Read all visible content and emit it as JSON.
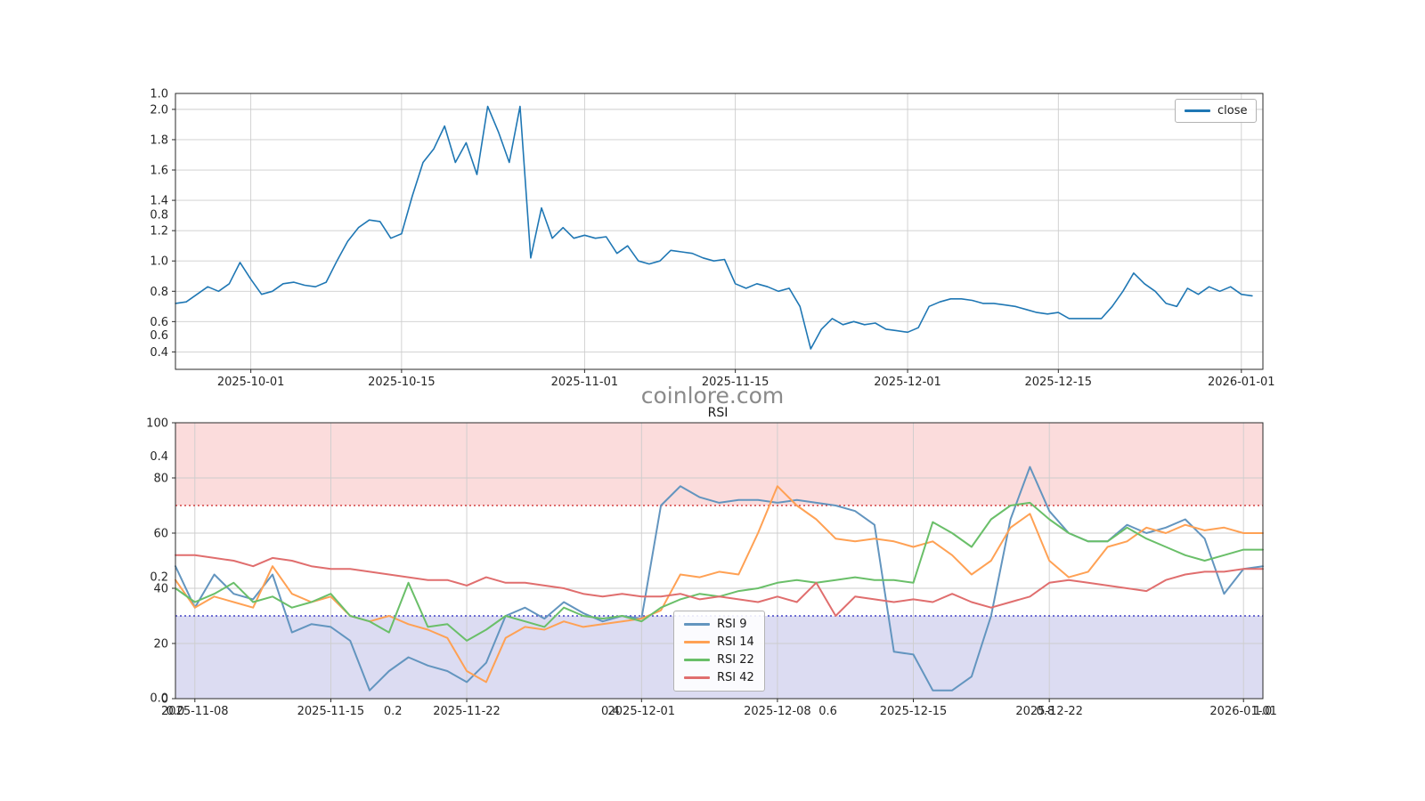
{
  "source_watermark": "coinlore.com",
  "hidden_axis": {
    "left_tick_labels": [
      "1.0",
      "0.8",
      "0.6",
      "0.4",
      "0.2",
      "0.0"
    ],
    "bottom_tick_labels": [
      "0.0",
      "0.2",
      "0.4",
      "0.6",
      "0.8",
      "1.0"
    ]
  },
  "chart_data": [
    {
      "type": "line",
      "title": "",
      "xlabel": "",
      "ylabel": "",
      "grid": true,
      "grid_color": "#cdcdcd",
      "legend_position": "upper right",
      "ylim": [
        0.285,
        2.105
      ],
      "xlim": [
        "2025-09-24",
        "2026-01-03"
      ],
      "yticks": [
        {
          "v": 0.4,
          "label": "0.4"
        },
        {
          "v": 0.6,
          "label": "0.6"
        },
        {
          "v": 0.8,
          "label": "0.8"
        },
        {
          "v": 1.0,
          "label": "1.0"
        },
        {
          "v": 1.2,
          "label": "1.2"
        },
        {
          "v": 1.4,
          "label": "1.4"
        },
        {
          "v": 1.6,
          "label": "1.6"
        },
        {
          "v": 1.8,
          "label": "1.8"
        },
        {
          "v": 2.0,
          "label": "2.0"
        }
      ],
      "xticks": [
        {
          "date": "2025-10-01",
          "label": "2025-10-01"
        },
        {
          "date": "2025-10-15",
          "label": "2025-10-15"
        },
        {
          "date": "2025-11-01",
          "label": "2025-11-01"
        },
        {
          "date": "2025-11-15",
          "label": "2025-11-15"
        },
        {
          "date": "2025-12-01",
          "label": "2025-12-01"
        },
        {
          "date": "2025-12-15",
          "label": "2025-12-15"
        },
        {
          "date": "2026-01-01",
          "label": "2026-01-01"
        }
      ],
      "series": [
        {
          "name": "close",
          "color": "#1f77b4",
          "x_start": "2025-09-24",
          "interval": "1d",
          "values": [
            0.72,
            0.73,
            0.78,
            0.83,
            0.8,
            0.85,
            0.99,
            0.88,
            0.78,
            0.8,
            0.85,
            0.86,
            0.84,
            0.83,
            0.86,
            1.0,
            1.13,
            1.22,
            1.27,
            1.26,
            1.15,
            1.18,
            1.43,
            1.65,
            1.74,
            1.89,
            1.65,
            1.78,
            1.57,
            2.02,
            1.85,
            1.65,
            2.02,
            1.02,
            1.35,
            1.15,
            1.22,
            1.15,
            1.17,
            1.15,
            1.16,
            1.05,
            1.1,
            1.0,
            0.98,
            1.0,
            1.07,
            1.06,
            1.05,
            1.02,
            1.0,
            1.01,
            0.85,
            0.82,
            0.85,
            0.83,
            0.8,
            0.82,
            0.7,
            0.42,
            0.55,
            0.62,
            0.58,
            0.6,
            0.58,
            0.59,
            0.55,
            0.54,
            0.53,
            0.56,
            0.7,
            0.73,
            0.75,
            0.75,
            0.74,
            0.72,
            0.72,
            0.71,
            0.7,
            0.68,
            0.66,
            0.65,
            0.66,
            0.62,
            0.62,
            0.62,
            0.62,
            0.7,
            0.8,
            0.92,
            0.85,
            0.8,
            0.72,
            0.7,
            0.82,
            0.78,
            0.83,
            0.8,
            0.83,
            0.78,
            0.77
          ]
        }
      ]
    },
    {
      "type": "line",
      "title": "RSI",
      "xlabel": "",
      "ylabel": "",
      "grid": true,
      "grid_color": "#cdcdcd",
      "legend_position": "lower center-left",
      "ylim": [
        0,
        100
      ],
      "xlim": [
        "2025-11-07",
        "2026-01-02"
      ],
      "overbought": {
        "level": 70,
        "line_color": "#cc2222",
        "fill": "#fbdcdc"
      },
      "oversold": {
        "level": 30,
        "line_color": "#2222bb",
        "fill": "#dcdcf2"
      },
      "yticks": [
        {
          "v": 0,
          "label": "0"
        },
        {
          "v": 20,
          "label": "20"
        },
        {
          "v": 40,
          "label": "40"
        },
        {
          "v": 60,
          "label": "60"
        },
        {
          "v": 80,
          "label": "80"
        },
        {
          "v": 100,
          "label": "100"
        }
      ],
      "xticks": [
        {
          "date": "2025-11-08",
          "label": "2025-11-08"
        },
        {
          "date": "2025-11-15",
          "label": "2025-11-15"
        },
        {
          "date": "2025-11-22",
          "label": "2025-11-22"
        },
        {
          "date": "2025-12-01",
          "label": "2025-12-01"
        },
        {
          "date": "2025-12-08",
          "label": "2025-12-08"
        },
        {
          "date": "2025-12-15",
          "label": "2025-12-15"
        },
        {
          "date": "2025-12-22",
          "label": "2025-12-22"
        },
        {
          "date": "2026-01-01",
          "label": "2026-01-01"
        }
      ],
      "series": [
        {
          "name": "RSI 9",
          "color": "#6395bf",
          "x_start": "2025-11-07",
          "interval": "1d",
          "values": [
            48,
            33,
            45,
            38,
            36,
            45,
            24,
            27,
            26,
            21,
            3,
            10,
            15,
            12,
            10,
            6,
            13,
            30,
            33,
            29,
            35,
            31,
            28,
            30,
            29,
            70,
            77,
            73,
            71,
            72,
            72,
            71,
            72,
            71,
            70,
            68,
            63,
            17,
            16,
            3,
            3,
            8,
            30,
            65,
            84,
            68,
            60,
            57,
            57,
            63,
            60,
            62,
            65,
            58,
            38,
            47,
            48
          ]
        },
        {
          "name": "RSI 14",
          "color": "#ffa154",
          "x_start": "2025-11-07",
          "interval": "1d",
          "values": [
            43,
            33,
            37,
            35,
            33,
            48,
            38,
            35,
            37,
            30,
            28,
            30,
            27,
            25,
            22,
            10,
            6,
            22,
            26,
            25,
            28,
            26,
            27,
            28,
            29,
            32,
            45,
            44,
            46,
            45,
            60,
            77,
            70,
            65,
            58,
            57,
            58,
            57,
            55,
            57,
            52,
            45,
            50,
            62,
            67,
            50,
            44,
            46,
            55,
            57,
            62,
            60,
            63,
            61,
            62,
            60,
            60
          ]
        },
        {
          "name": "RSI 22",
          "color": "#6abf69",
          "x_start": "2025-11-07",
          "interval": "1d",
          "values": [
            40,
            35,
            38,
            42,
            35,
            37,
            33,
            35,
            38,
            30,
            28,
            24,
            42,
            26,
            27,
            21,
            25,
            30,
            28,
            26,
            33,
            30,
            29,
            30,
            28,
            33,
            36,
            38,
            37,
            39,
            40,
            42,
            43,
            42,
            43,
            44,
            43,
            43,
            42,
            64,
            60,
            55,
            65,
            70,
            71,
            65,
            60,
            57,
            57,
            62,
            58,
            55,
            52,
            50,
            52,
            54,
            54
          ]
        },
        {
          "name": "RSI 42",
          "color": "#e06e6e",
          "x_start": "2025-11-07",
          "interval": "1d",
          "values": [
            52,
            52,
            51,
            50,
            48,
            51,
            50,
            48,
            47,
            47,
            46,
            45,
            44,
            43,
            43,
            41,
            44,
            42,
            42,
            41,
            40,
            38,
            37,
            38,
            37,
            37,
            38,
            36,
            37,
            36,
            35,
            37,
            35,
            42,
            30,
            37,
            36,
            35,
            36,
            35,
            38,
            35,
            33,
            35,
            37,
            42,
            43,
            42,
            41,
            40,
            39,
            43,
            45,
            46,
            46,
            47,
            47
          ]
        }
      ]
    }
  ]
}
